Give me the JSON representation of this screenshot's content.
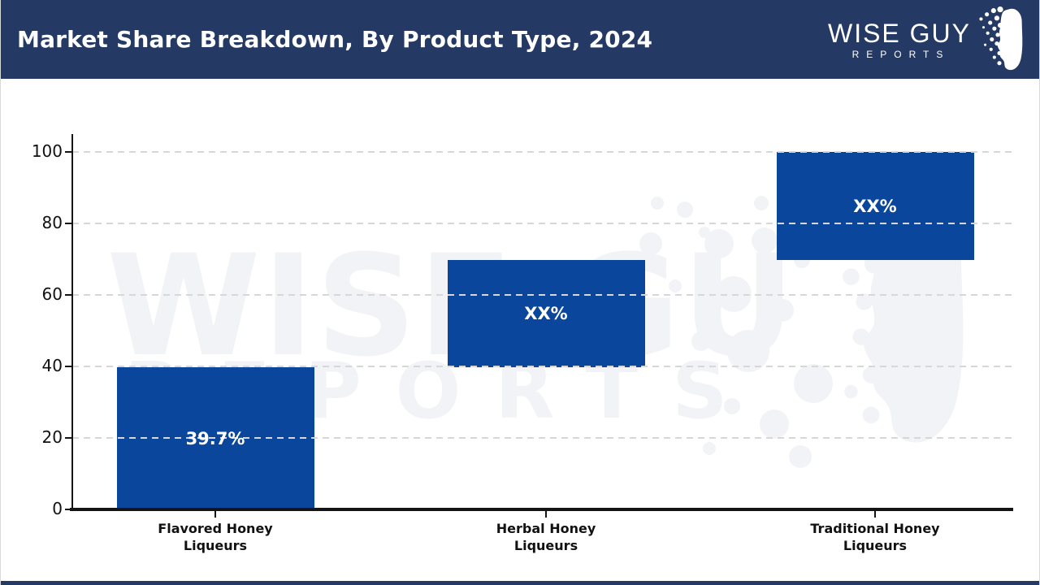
{
  "header": {
    "title": "Market Share Breakdown, By Product Type, 2024",
    "logo": {
      "line1": "WISE GUY",
      "line2": "REPORTS"
    }
  },
  "watermark": {
    "line1": "WISE GU",
    "line2": "REPORTS"
  },
  "chart_data": {
    "type": "bar",
    "subtype": "floating-segment-bars",
    "title": "Market Share Breakdown, By Product Type, 2024",
    "categories": [
      [
        "Flavored Honey",
        "Liqueurs"
      ],
      [
        "Herbal Honey",
        "Liqueurs"
      ],
      [
        "Traditional Honey",
        "Liqueurs"
      ]
    ],
    "series": [
      {
        "name": "Flavored Honey Liqueurs",
        "start": 0,
        "end": 39.7,
        "label": "39.7%"
      },
      {
        "name": "Herbal Honey Liqueurs",
        "start": 39.7,
        "end": 69.7,
        "label": "XX%"
      },
      {
        "name": "Traditional Honey Liqueurs",
        "start": 69.7,
        "end": 100,
        "label": "XX%"
      }
    ],
    "ylim": [
      0,
      100
    ],
    "yticks": [
      0,
      20,
      40,
      60,
      80,
      100
    ],
    "grid": true,
    "legend": "none",
    "bar_color": "#0a469b",
    "bar_label_color": "#ffffff",
    "axis_color": "#141414",
    "grid_color": "#d7d7d7"
  },
  "colors": {
    "header_bg": "#243a64",
    "watermark": "#f2f3f6",
    "page_bg": "#ffffff"
  }
}
